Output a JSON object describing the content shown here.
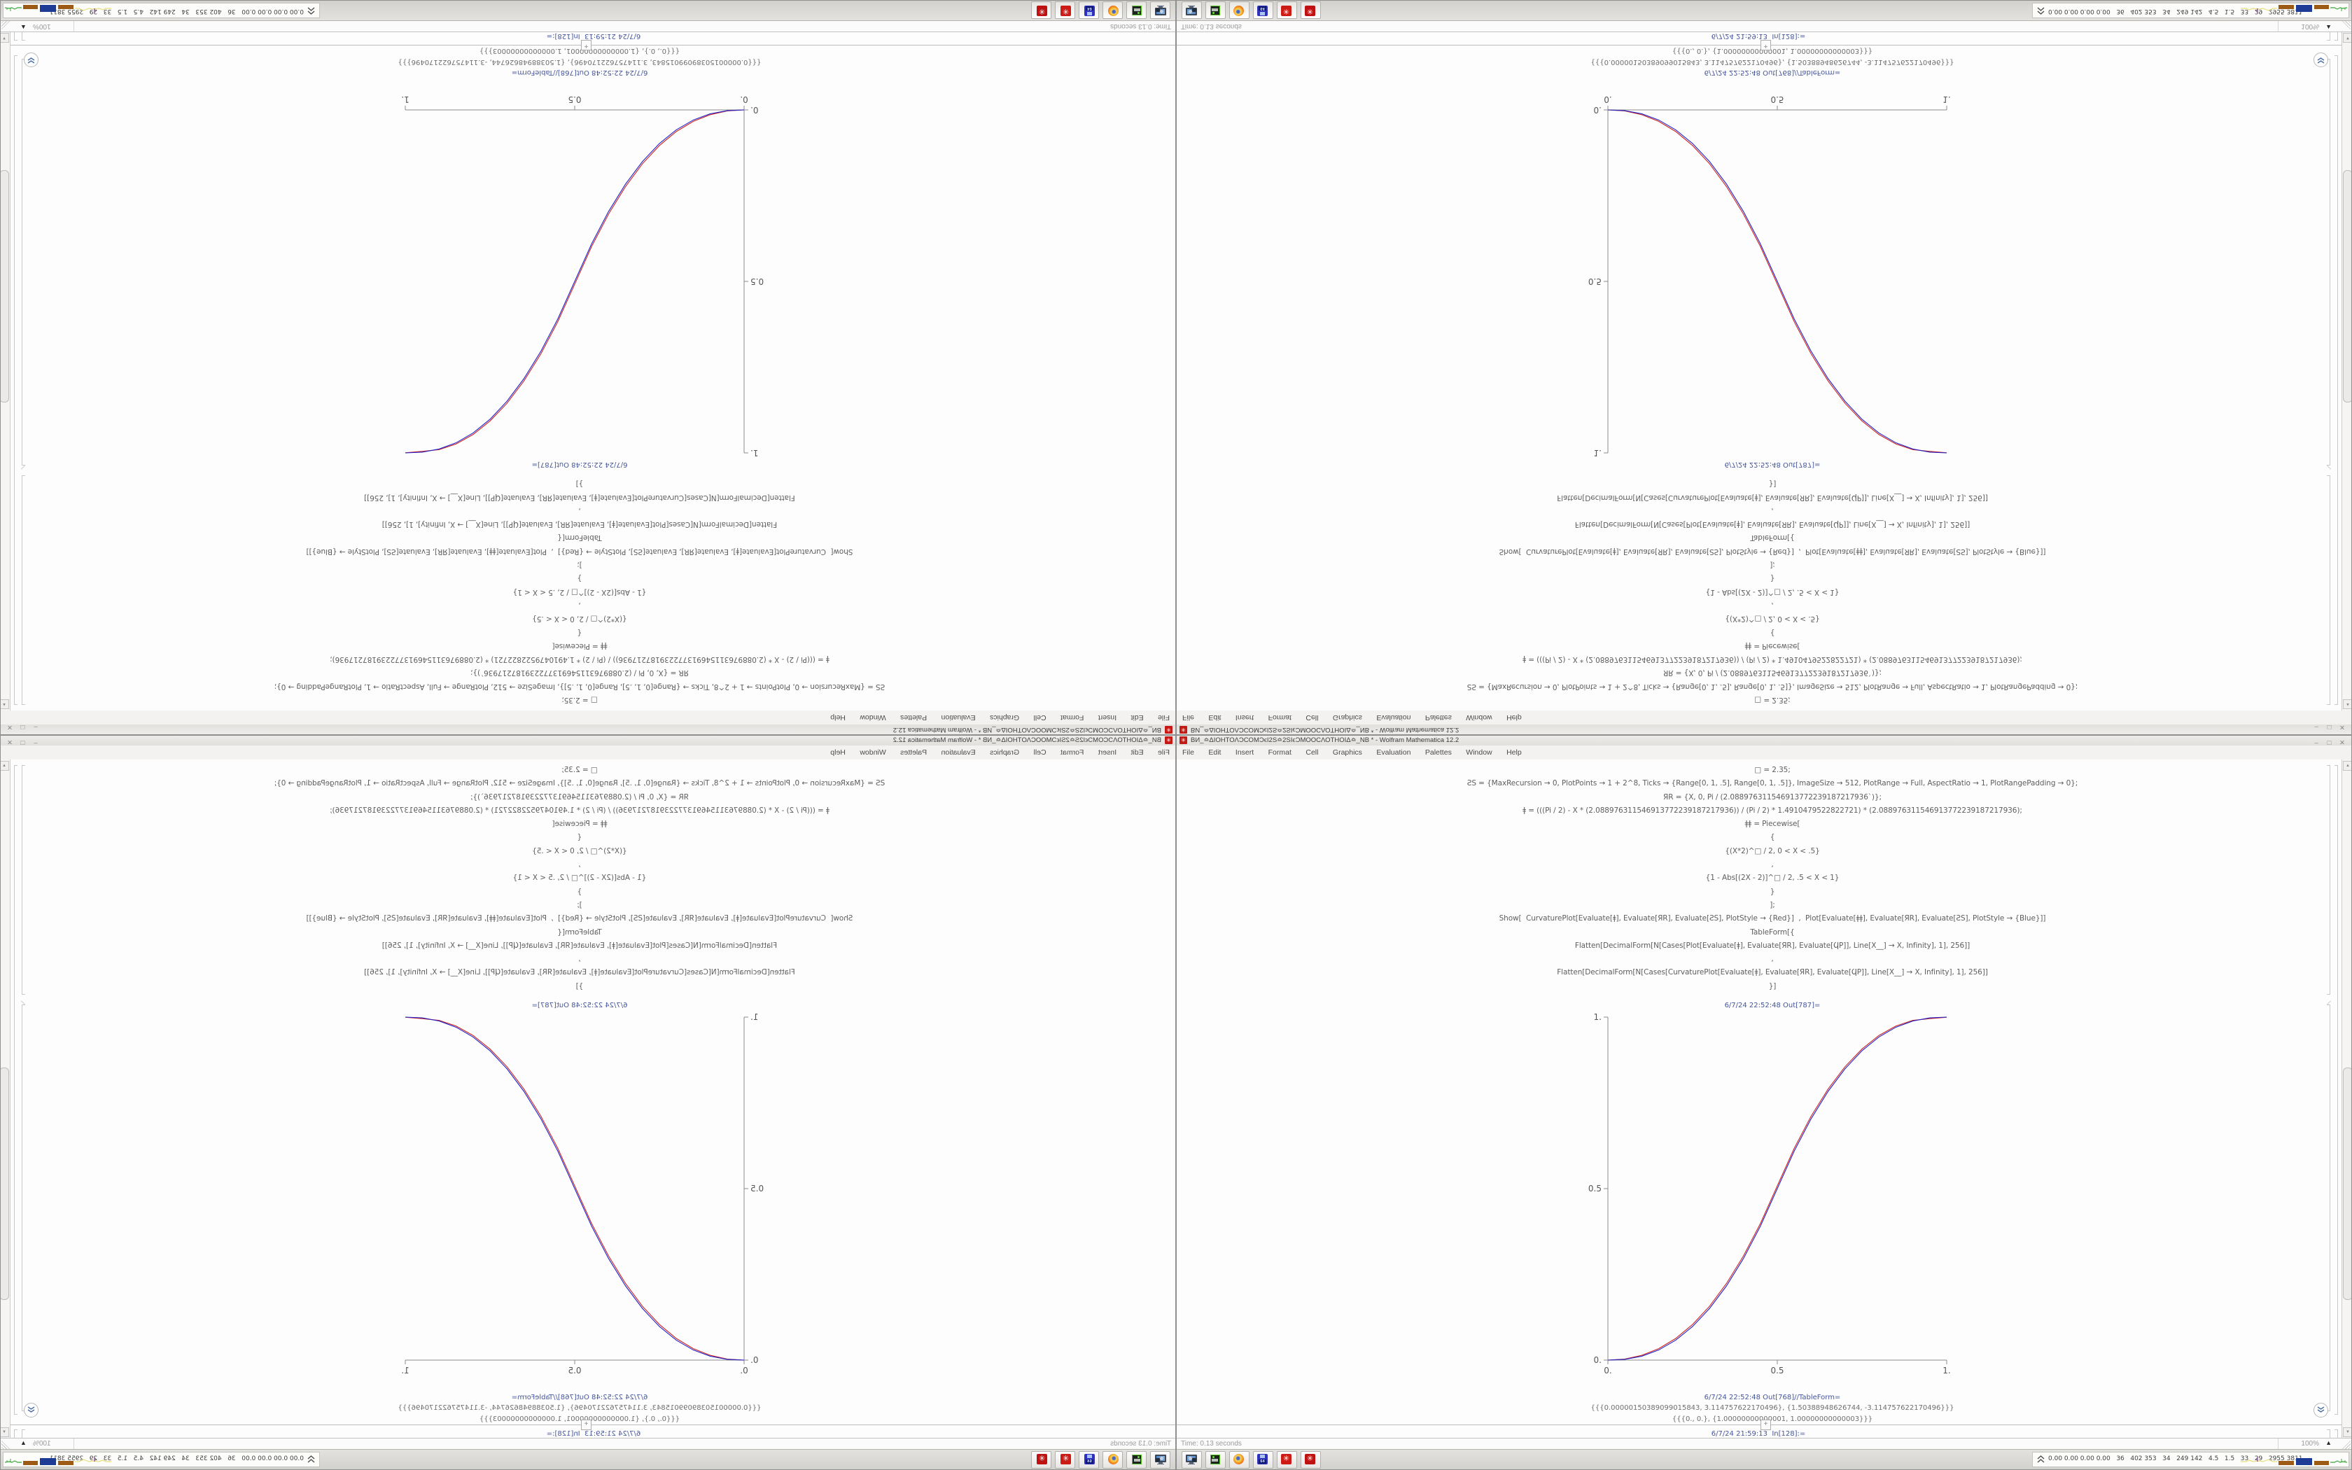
{
  "window": {
    "title": "ВИ_≏ΔΙΟΗΤΟΛƆCΟΜƆϵΙ2S≏2SΙϵƆΜΟΟCΛΟΤΗΟΙΔ≏_ΝΒ * - Wolfram Mathematica 12.2",
    "minimize_glyph": "–",
    "maximize_glyph": "□",
    "close_glyph": "✕"
  },
  "menu": {
    "items": [
      "File",
      "Edit",
      "Insert",
      "Format",
      "Cell",
      "Graphics",
      "Evaluation",
      "Palettes",
      "Window",
      "Help"
    ]
  },
  "notebook": {
    "input_lines": [
      "□ = 2.35;",
      "ƧS = {MaxRecursion → 0, PlotPoints → 1 + 2^8, Ticks → {Range[0, 1, .5], Range[0, 1, .5]}, ImageSize → 512, PlotRange → Full, AspectRatio → 1, PlotRangePadding → 0};",
      "ЯR = {X, 0, Pi / (2.088976311546913772239187217936`)};",
      "ǂ = (((Pi / 2) - X * (2.088976311546913772239187217936)) / (Pi / 2) * 1.4910479522822721) * (2.088976311546913772239187217936);",
      "ǂǂ = Piecewise[",
      "{",
      "{(X*2)^□ / 2, 0 < X < .5}",
      ",",
      "{1 - Abs[(2X - 2)]^□ / 2, .5 < X < 1}",
      "}",
      "];",
      "Show[  CurvaturePlot[Evaluate[ǂ], Evaluate[ЯR], Evaluate[ƧS], PlotStyle → {Red}]  ,  Plot[Evaluate[ǂǂ], Evaluate[ЯR], Evaluate[ƧS], PlotStyle → {Blue}]]",
      "TableForm[{",
      "Flatten[DecimalForm[N[Cases[Plot[Evaluate[ǂ], Evaluate[ЯR], Evaluate[ϤP]], Line[X__] → X, Infinity], 1], 256]]",
      ",",
      "Flatten[DecimalForm[N[Cases[CurvaturePlot[Evaluate[ǂ], Evaluate[ЯR], Evaluate[ϤP]], Line[X__] → X, Infinity], 1], 256]]",
      "}]"
    ],
    "out_plot_label": "6/7/24 22:52:48 Out[787]=",
    "out_table_label": "6/7/24 22:52:48 Out[768]//TableForm=",
    "out_table_rows": [
      "{{{0.00000150389099015843, 3.114757622170496}, {1.50388948626744, -3.114757622170496}}}",
      "{{{0., 0.}, {1.00000000000001, 1.00000000000003}}}"
    ],
    "insert_plus": "+",
    "in_label": "6/7/24 21:59:13  In[128]:="
  },
  "status_bar": {
    "time_label": "Time: 0.13 seconds",
    "zoom_level": "100%"
  },
  "taskbar": {
    "floppy_label": "64",
    "tray_stats": "0.00 0.00 0.00 0.00   36   402 353   34   249 142   4.5   1.5   33   29   2955 3811",
    "icon_names": [
      "screen-capture-tool",
      "disk-drive-monitor",
      "firefox-browser",
      "floppy-64-tool",
      "mathematica-spikey",
      "mathematica-spikey-2"
    ]
  },
  "colors": {
    "cell_label_blue": "#46569b",
    "spikey_red": "#c41914",
    "curve_red": "#cc2222",
    "curve_blue": "#2323c8"
  },
  "chart_data": {
    "type": "line",
    "title": "",
    "xlabel": "",
    "ylabel": "",
    "xlim": [
      0,
      1
    ],
    "ylim": [
      0,
      1
    ],
    "xticks": [
      0,
      0.5,
      1
    ],
    "yticks": [
      0,
      0.5,
      1
    ],
    "xtick_labels": [
      "0.",
      "0.5",
      "1."
    ],
    "ytick_labels": [
      "0.",
      "0.5",
      "1."
    ],
    "grid": false,
    "legend": "none",
    "x": [
      0,
      0.05,
      0.1,
      0.15,
      0.2,
      0.25,
      0.3,
      0.35,
      0.4,
      0.45,
      0.5,
      0.55,
      0.6,
      0.65,
      0.7,
      0.75,
      0.8,
      0.85,
      0.9,
      0.95,
      1
    ],
    "series": [
      {
        "name": "CurvaturePlot[ǂ] (Red)",
        "color": "#cc2222",
        "values": [
          0,
          0.003,
          0.014,
          0.0335,
          0.063,
          0.104,
          0.157,
          0.2235,
          0.3035,
          0.398,
          0.508,
          0.6175,
          0.7115,
          0.7905,
          0.8555,
          0.907,
          0.9465,
          0.974,
          0.9905,
          0.9955,
          0.9995
        ]
      },
      {
        "name": "Plot[ǂǂ] (Blue)",
        "color": "#2323c8",
        "values": [
          0,
          0.0022,
          0.0114,
          0.0295,
          0.058,
          0.098,
          0.1505,
          0.2163,
          0.296,
          0.3903,
          0.5,
          0.6097,
          0.704,
          0.7837,
          0.8495,
          0.902,
          0.942,
          0.9705,
          0.9886,
          0.9978,
          1
        ]
      }
    ]
  }
}
